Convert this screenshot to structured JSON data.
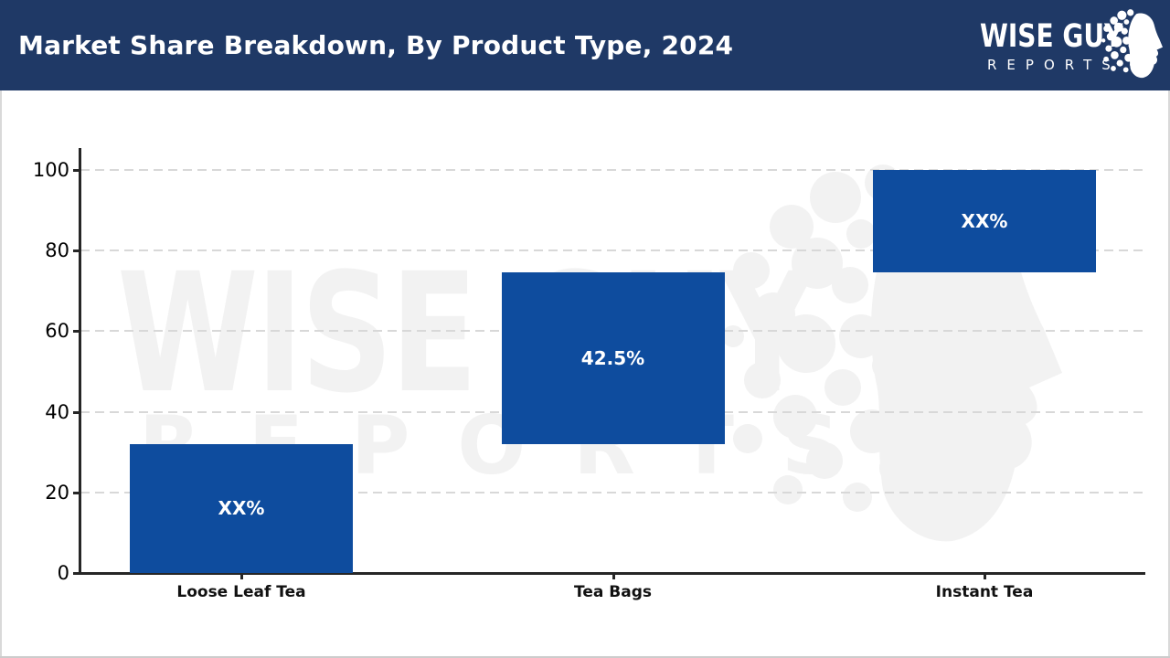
{
  "header": {
    "title": "Market Share Breakdown, By Product Type, 2024",
    "logo": {
      "line1": "WISE GUY",
      "line2": "REPORTS"
    }
  },
  "watermark": {
    "line1": "WISE GUY",
    "line2": "REPORTS"
  },
  "chart_data": {
    "type": "bar",
    "subtype": "floating-waterfall",
    "title": "Market Share Breakdown, By Product Type, 2024",
    "categories": [
      "Loose Leaf Tea",
      "Tea Bags",
      "Instant Tea"
    ],
    "segments": [
      {
        "category": "Loose Leaf Tea",
        "start": 0,
        "end": 32,
        "label": "XX%",
        "value_masked": true
      },
      {
        "category": "Tea Bags",
        "start": 32,
        "end": 74.5,
        "label": "42.5%",
        "value": 42.5
      },
      {
        "category": "Instant Tea",
        "start": 74.5,
        "end": 100,
        "label": "XX%",
        "value_masked": true
      }
    ],
    "ylim": [
      0,
      100
    ],
    "yticks": [
      0,
      20,
      40,
      60,
      80,
      100
    ],
    "xlabel": "",
    "ylabel": "",
    "legend": "none",
    "grid": "horizontal-dashed",
    "bar_color": "#0E4C9E",
    "bar_label_color": "#FFFFFF"
  },
  "colors": {
    "header_bg": "#1F3966",
    "bar": "#0E4C9E",
    "axis": "#262626",
    "gridline": "#D8D8D8",
    "watermark": "#F2F2F2",
    "frame_line": "#CCCCCC"
  }
}
